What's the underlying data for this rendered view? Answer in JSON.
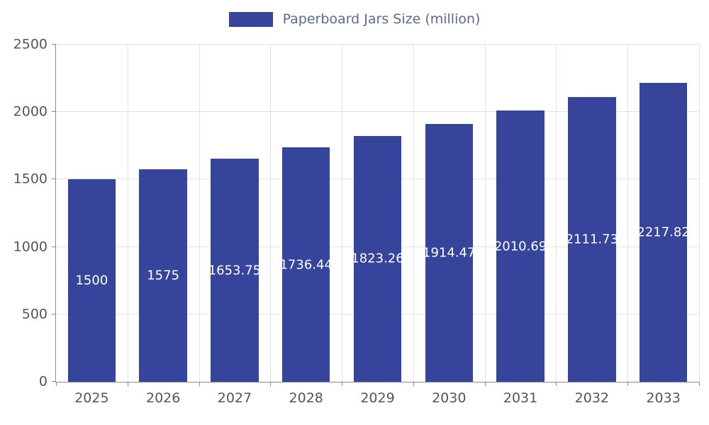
{
  "legend": {
    "label": "Paperboard Jars Size (million)",
    "swatch_color": "#36459B",
    "text_color": "#5b6b8a"
  },
  "axis": {
    "tick_text_color": "#555555",
    "grid_color": "#e2e2e2",
    "axis_line_color": "#8c8c8c"
  },
  "chart_data": {
    "type": "bar",
    "title": "Paperboard Jars Size (million)",
    "categories": [
      "2025",
      "2026",
      "2027",
      "2028",
      "2029",
      "2030",
      "2031",
      "2032",
      "2033"
    ],
    "values": [
      1500,
      1575,
      1653.75,
      1736.44,
      1823.26,
      1914.47,
      2010.69,
      2111.73,
      2217.82
    ],
    "value_labels": [
      "1500",
      "1575",
      "1653.75",
      "1736.44",
      "1823.26",
      "1914.47",
      "2010.69",
      "2111.73",
      "2217.82"
    ],
    "xlabel": "",
    "ylabel": "",
    "ylim": [
      0,
      2500
    ],
    "yticks": [
      0,
      500,
      1000,
      1500,
      2000,
      2500
    ],
    "grid": true,
    "legend_position": "top-center",
    "bar_color": "#36459B",
    "bar_label_color": "#ffffff"
  }
}
